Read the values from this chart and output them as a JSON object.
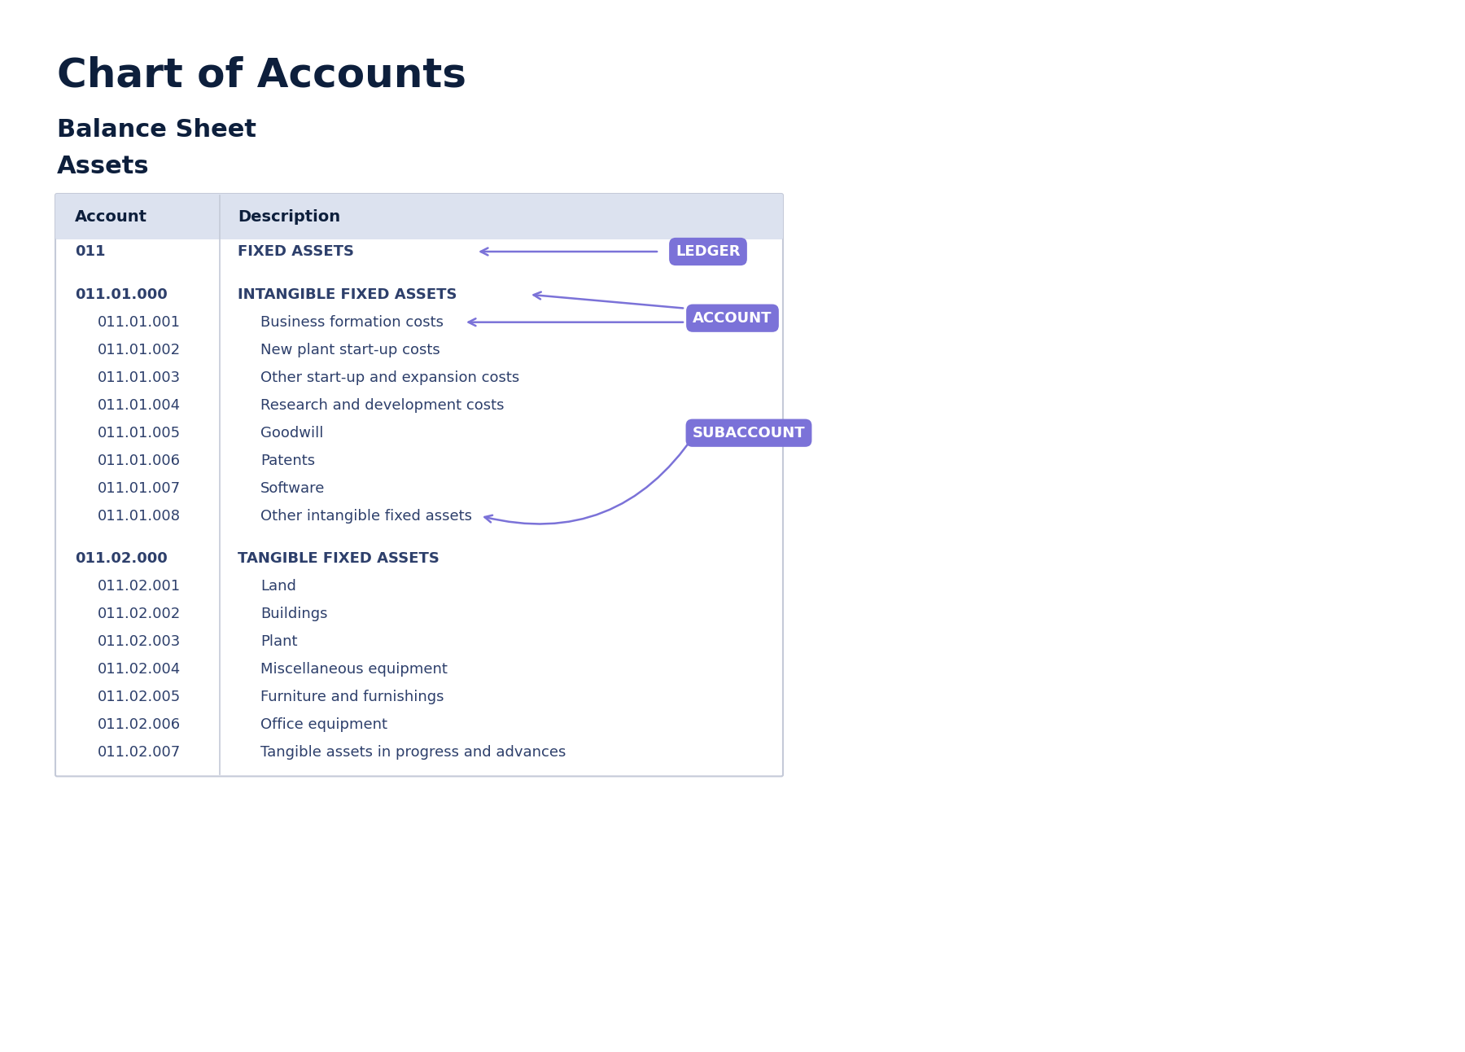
{
  "title": "Chart of Accounts",
  "subtitle1": "Balance Sheet",
  "subtitle2": "Assets",
  "bg_color": "#ffffff",
  "title_color": "#0d1f3c",
  "header_bg": "#dce2ef",
  "table_border": "#c5cad8",
  "col_header": [
    "Account",
    "Description"
  ],
  "rows": [
    {
      "account": "011",
      "description": "FIXED ASSETS",
      "indent": 0,
      "bold": true,
      "spacer": false
    },
    {
      "account": "",
      "description": "",
      "indent": 0,
      "bold": false,
      "spacer": true
    },
    {
      "account": "011.01.000",
      "description": "INTANGIBLE FIXED ASSETS",
      "indent": 0,
      "bold": true,
      "spacer": false
    },
    {
      "account": "011.01.001",
      "description": "Business formation costs",
      "indent": 1,
      "bold": false,
      "spacer": false
    },
    {
      "account": "011.01.002",
      "description": "New plant start-up costs",
      "indent": 1,
      "bold": false,
      "spacer": false
    },
    {
      "account": "011.01.003",
      "description": "Other start-up and expansion costs",
      "indent": 1,
      "bold": false,
      "spacer": false
    },
    {
      "account": "011.01.004",
      "description": "Research and development costs",
      "indent": 1,
      "bold": false,
      "spacer": false
    },
    {
      "account": "011.01.005",
      "description": "Goodwill",
      "indent": 1,
      "bold": false,
      "spacer": false
    },
    {
      "account": "011.01.006",
      "description": "Patents",
      "indent": 1,
      "bold": false,
      "spacer": false
    },
    {
      "account": "011.01.007",
      "description": "Software",
      "indent": 1,
      "bold": false,
      "spacer": false
    },
    {
      "account": "011.01.008",
      "description": "Other intangible fixed assets",
      "indent": 1,
      "bold": false,
      "spacer": false
    },
    {
      "account": "",
      "description": "",
      "indent": 0,
      "bold": false,
      "spacer": true
    },
    {
      "account": "011.02.000",
      "description": "TANGIBLE FIXED ASSETS",
      "indent": 0,
      "bold": true,
      "spacer": false
    },
    {
      "account": "011.02.001",
      "description": "Land",
      "indent": 1,
      "bold": false,
      "spacer": false
    },
    {
      "account": "011.02.002",
      "description": "Buildings",
      "indent": 1,
      "bold": false,
      "spacer": false
    },
    {
      "account": "011.02.003",
      "description": "Plant",
      "indent": 1,
      "bold": false,
      "spacer": false
    },
    {
      "account": "011.02.004",
      "description": "Miscellaneous equipment",
      "indent": 1,
      "bold": false,
      "spacer": false
    },
    {
      "account": "011.02.005",
      "description": "Furniture and furnishings",
      "indent": 1,
      "bold": false,
      "spacer": false
    },
    {
      "account": "011.02.006",
      "description": "Office equipment",
      "indent": 1,
      "bold": false,
      "spacer": false
    },
    {
      "account": "011.02.007",
      "description": "Tangible assets in progress and advances",
      "indent": 1,
      "bold": false,
      "spacer": false
    }
  ],
  "label_bg": "#7b72d8",
  "label_text_color": "#ffffff",
  "arrow_color": "#7b72d8",
  "ledger_label": "LEDGER",
  "account_label": "ACCOUNT",
  "subaccount_label": "SUBACCOUNT",
  "text_color": "#2d3f6b"
}
